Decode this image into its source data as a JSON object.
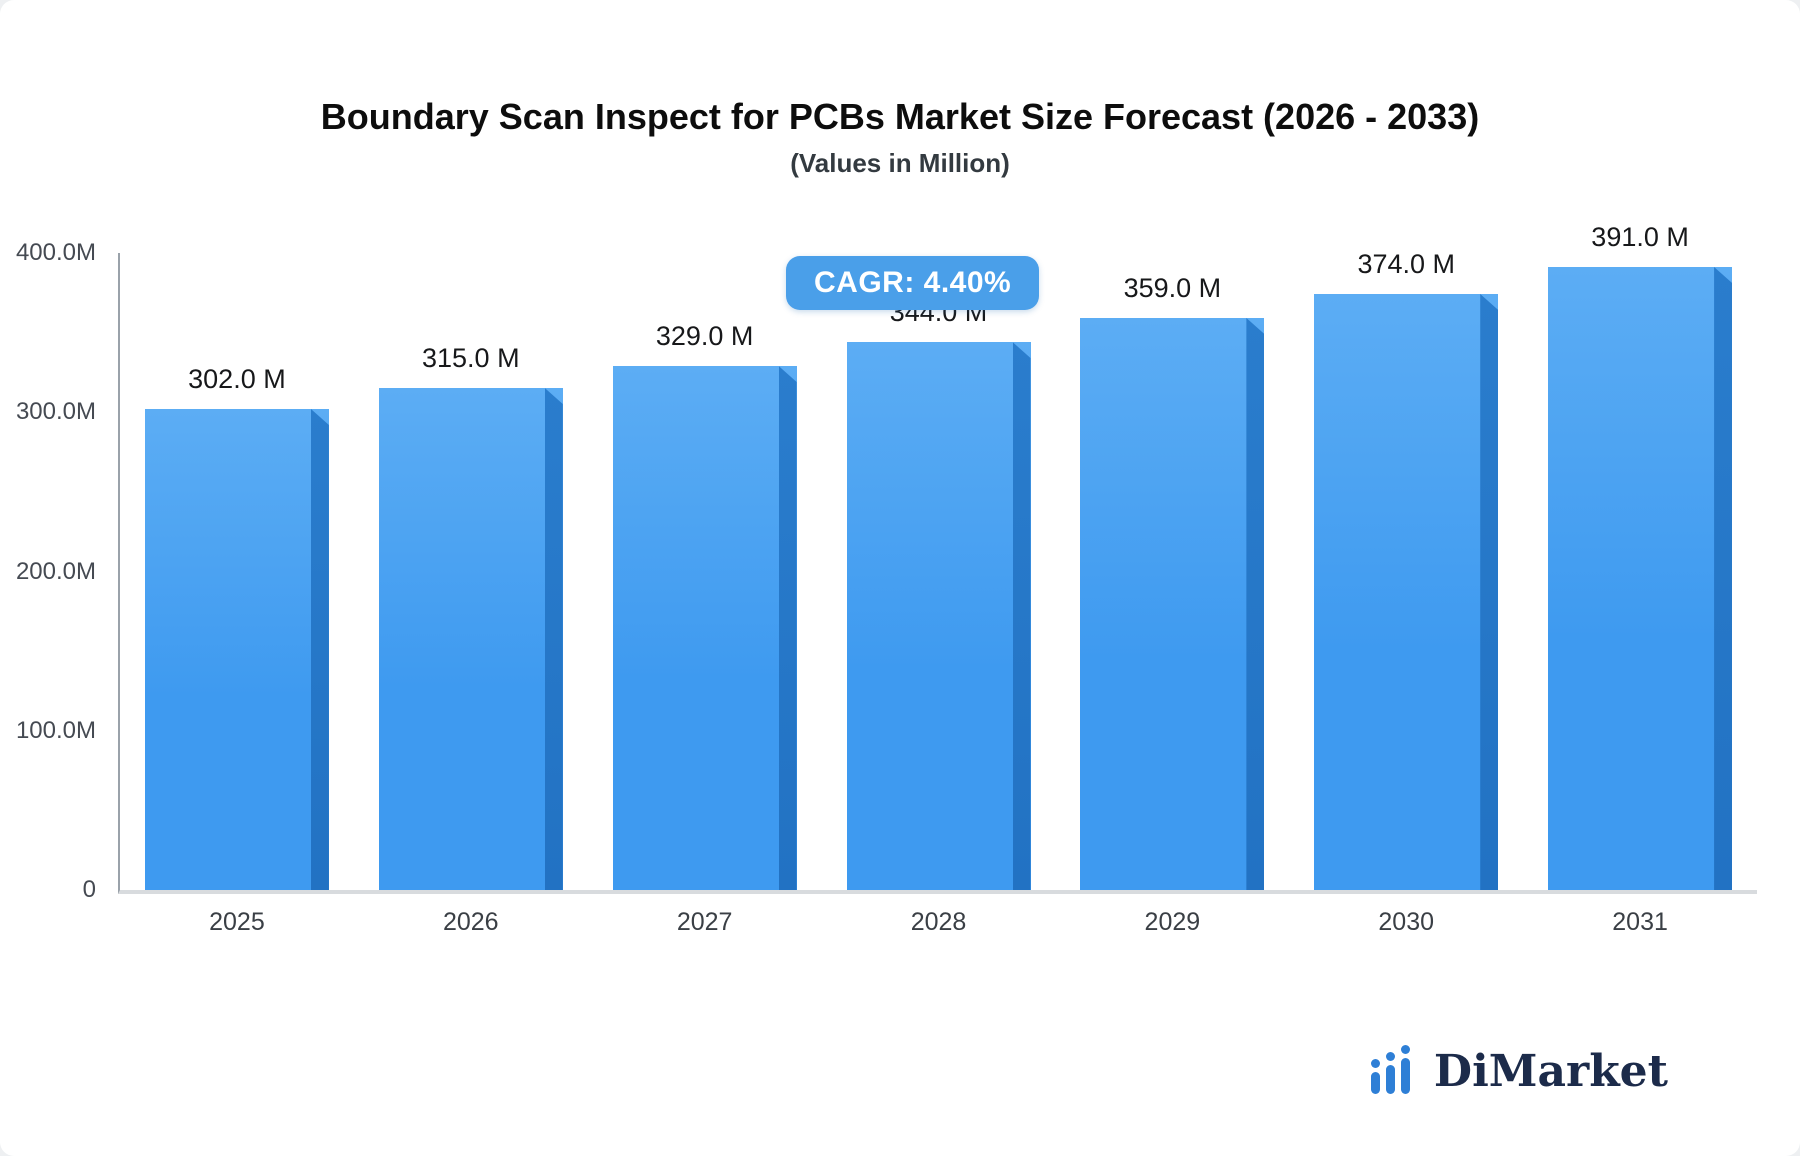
{
  "title": "Boundary Scan Inspect for PCBs Market Size Forecast (2026 - 2033)",
  "subtitle": "(Values in Million)",
  "cagr_badge": "CAGR: 4.40%",
  "logo": {
    "text": "DiMarket"
  },
  "chart_data": {
    "type": "bar",
    "title": "Boundary Scan Inspect for PCBs Market Size Forecast (2026 - 2033)",
    "subtitle": "(Values in Million)",
    "categories": [
      "2025",
      "2026",
      "2027",
      "2028",
      "2029",
      "2030",
      "2031"
    ],
    "values": [
      302.0,
      315.0,
      329.0,
      344.0,
      359.0,
      374.0,
      391.0
    ],
    "value_labels": [
      "302.0 M",
      "315.0 M",
      "329.0 M",
      "344.0 M",
      "359.0 M",
      "374.0 M",
      "391.0 M"
    ],
    "yticks": [
      {
        "label": "400.0M",
        "value": 400
      },
      {
        "label": "300.0M",
        "value": 300
      },
      {
        "label": "200.0M",
        "value": 200
      },
      {
        "label": "100.0M",
        "value": 100
      },
      {
        "label": "0",
        "value": 0
      }
    ],
    "ylim": [
      0,
      400
    ],
    "xlabel": "",
    "ylabel": "",
    "grid": false,
    "legend": "none",
    "annotation": "CAGR: 4.40%",
    "bar_color": "#3E9AF0",
    "bar_side_color": "#2272C3",
    "badge_color": "#4A9FE9"
  }
}
